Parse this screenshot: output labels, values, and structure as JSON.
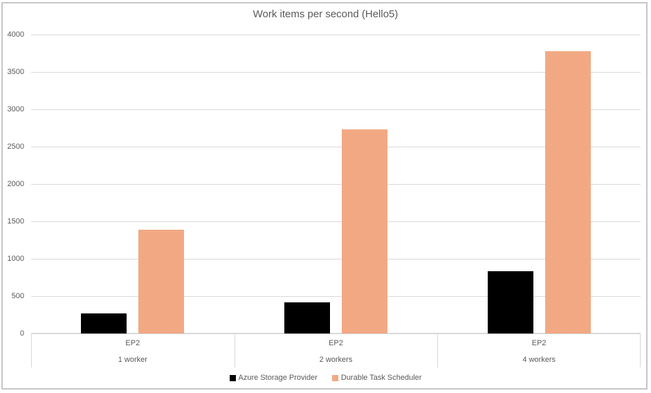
{
  "chart_data": {
    "type": "bar",
    "title": "Work items per second (Hello5)",
    "categories": [
      "1 worker",
      "2 workers",
      "4 workers"
    ],
    "category_top_labels": [
      "EP2",
      "EP2",
      "EP2"
    ],
    "series": [
      {
        "name": "Azure Storage Provider",
        "color": "#000000",
        "values": [
          265,
          415,
          830
        ]
      },
      {
        "name": "Durable Task Scheduler",
        "color": "#f2a983",
        "values": [
          1390,
          2735,
          3775
        ]
      }
    ],
    "xlabel": "",
    "ylabel": "",
    "ylim": [
      0,
      4000
    ],
    "yticks": [
      0,
      500,
      1000,
      1500,
      2000,
      2500,
      3000,
      3500,
      4000
    ],
    "grid": true,
    "legend_position": "bottom"
  },
  "colors": {
    "title_text": "#595959",
    "axis_text": "#595959",
    "gridline": "#d9d9d9",
    "frame_border": "#c6c6c6",
    "background": "#ffffff"
  }
}
